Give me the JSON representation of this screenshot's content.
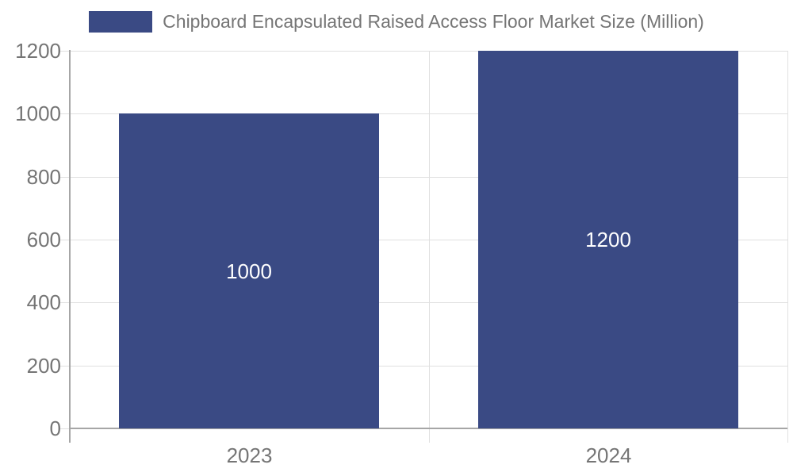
{
  "legend": {
    "label": "Chipboard Encapsulated Raised Access Floor Market Size (Million)"
  },
  "colors": {
    "bar": "#3A4A84",
    "legend_swatch": "#3A4A84",
    "axis_text": "#757575",
    "value_label": "#FFFFFF",
    "gridline": "#E0E0E0",
    "axis_line": "#A6A6A6",
    "background": "#FFFFFF"
  },
  "chart_data": {
    "type": "bar",
    "title": "Chipboard Encapsulated Raised Access Floor Market Size (Million)",
    "categories": [
      "2023",
      "2024"
    ],
    "series": [
      {
        "name": "Chipboard Encapsulated Raised Access Floor Market Size (Million)",
        "values": [
          1000,
          1200
        ]
      }
    ],
    "values": [
      1000,
      1200
    ],
    "value_labels": [
      "1000",
      "1200"
    ],
    "xlabel": "",
    "ylabel": "",
    "ylim": [
      0,
      1200
    ],
    "yticks": [
      0,
      200,
      400,
      600,
      800,
      1000,
      1200
    ],
    "grid": true,
    "legend_position": "top-center"
  }
}
